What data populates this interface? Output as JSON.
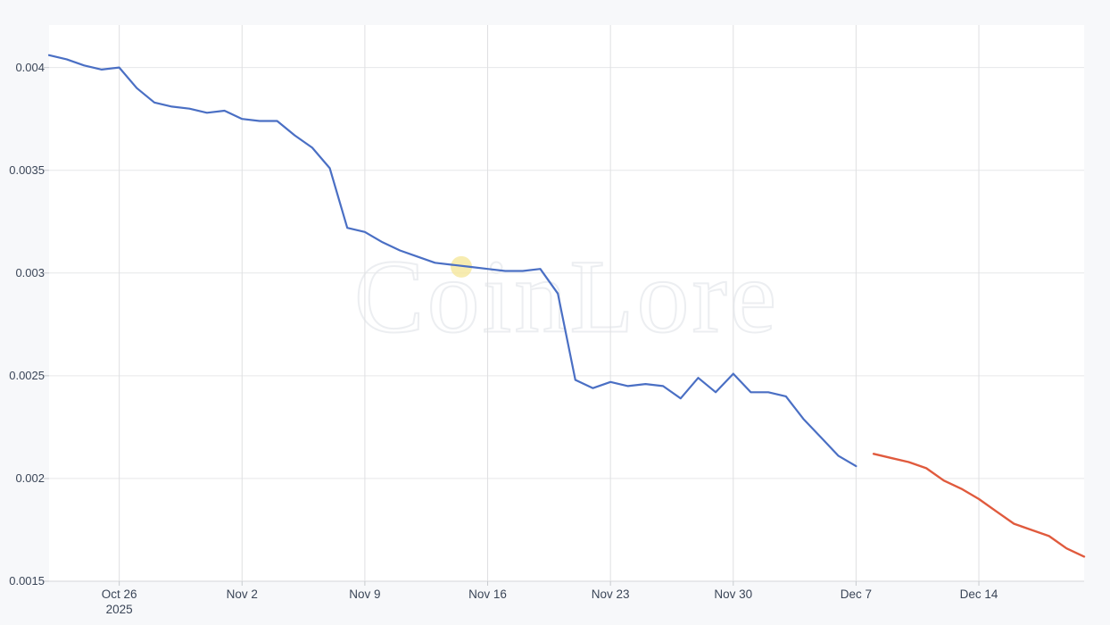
{
  "page": {
    "background_color": "#f7f8fa"
  },
  "chart_data": {
    "type": "line",
    "title": "",
    "watermark": "CoinLore",
    "grid": true,
    "legend": "none",
    "plot_background": "#ffffff",
    "colors": {
      "grid_horizontal": "#e6e7e9",
      "grid_vertical": "#dfe0e2",
      "axis_line": "#d4d6d9",
      "tick": "#c8cbcf",
      "axis_label": "#3a4557",
      "highlight_dot": "#f5e79c"
    },
    "x_axis": {
      "start_date": "Oct 22 2025",
      "days_total": 59,
      "ticks": [
        {
          "label": "Oct 26",
          "sublabel": "2025",
          "day": 4
        },
        {
          "label": "Nov 2",
          "sublabel": "",
          "day": 11
        },
        {
          "label": "Nov 9",
          "sublabel": "",
          "day": 18
        },
        {
          "label": "Nov 16",
          "sublabel": "",
          "day": 25
        },
        {
          "label": "Nov 23",
          "sublabel": "",
          "day": 32
        },
        {
          "label": "Nov 30",
          "sublabel": "",
          "day": 39
        },
        {
          "label": "Dec 7",
          "sublabel": "",
          "day": 46
        },
        {
          "label": "Dec 14",
          "sublabel": "",
          "day": 53
        }
      ]
    },
    "y_axis": {
      "tick_labels": [
        "0.004",
        "0.0035",
        "0.003",
        "0.0025",
        "0.002",
        "0.0015"
      ],
      "tick_values": [
        0.004,
        0.0035,
        0.003,
        0.0025,
        0.002,
        0.0015
      ],
      "min": 0.0015,
      "max": 0.004207
    },
    "series": [
      {
        "name": "price-history",
        "color": "#4a6fc4",
        "stroke_width": 2.2,
        "start_day_index": 0,
        "dates": [
          "Oct 22",
          "Oct 23",
          "Oct 24",
          "Oct 25",
          "Oct 26",
          "Oct 27",
          "Oct 28",
          "Oct 29",
          "Oct 30",
          "Oct 31",
          "Nov 1",
          "Nov 2",
          "Nov 3",
          "Nov 4",
          "Nov 5",
          "Nov 6",
          "Nov 7",
          "Nov 8",
          "Nov 9",
          "Nov 10",
          "Nov 11",
          "Nov 12",
          "Nov 13",
          "Nov 14",
          "Nov 15",
          "Nov 16",
          "Nov 17",
          "Nov 18",
          "Nov 19",
          "Nov 20",
          "Nov 21",
          "Nov 22",
          "Nov 23",
          "Nov 24",
          "Nov 25",
          "Nov 26",
          "Nov 27",
          "Nov 28",
          "Nov 29",
          "Nov 30",
          "Dec 1",
          "Dec 2",
          "Dec 3",
          "Dec 4",
          "Dec 5",
          "Dec 6",
          "Dec 7"
        ],
        "values": [
          0.00406,
          0.00404,
          0.00401,
          0.00399,
          0.004,
          0.0039,
          0.00383,
          0.00381,
          0.0038,
          0.00378,
          0.00379,
          0.00375,
          0.00374,
          0.00374,
          0.00367,
          0.00361,
          0.00351,
          0.00322,
          0.0032,
          0.00315,
          0.00311,
          0.00308,
          0.00305,
          0.00304,
          0.00303,
          0.00302,
          0.00301,
          0.00301,
          0.00302,
          0.0029,
          0.00248,
          0.00244,
          0.00247,
          0.00245,
          0.00246,
          0.00245,
          0.00239,
          0.00249,
          0.00242,
          0.00251,
          0.00242,
          0.00242,
          0.0024,
          0.00229,
          0.0022,
          0.00211,
          0.00206
        ]
      },
      {
        "name": "price-forecast",
        "color": "#e05a3d",
        "stroke_width": 2.4,
        "start_day_index": 47,
        "dates": [
          "Dec 8",
          "Dec 9",
          "Dec 10",
          "Dec 11",
          "Dec 12",
          "Dec 13",
          "Dec 14",
          "Dec 15",
          "Dec 16",
          "Dec 17",
          "Dec 18",
          "Dec 19",
          "Dec 20"
        ],
        "values": [
          0.00212,
          0.0021,
          0.00208,
          0.00205,
          0.00199,
          0.00195,
          0.0019,
          0.00184,
          0.00178,
          0.00175,
          0.00172,
          0.00166,
          0.00162
        ]
      }
    ],
    "highlight_point": {
      "day_index": 23.5,
      "value": 0.00303,
      "radius": 12
    }
  }
}
